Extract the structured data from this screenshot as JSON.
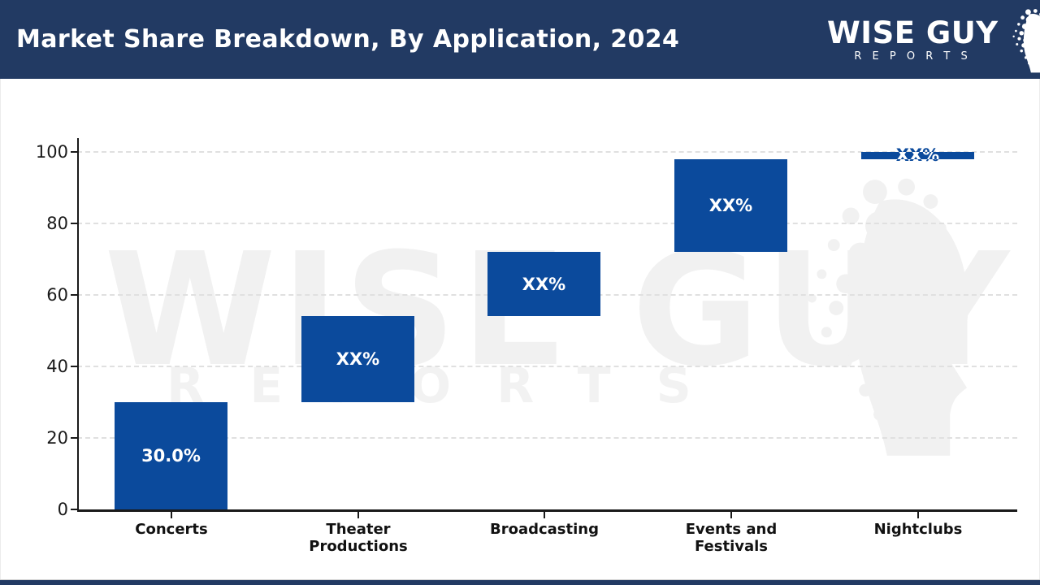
{
  "header": {
    "title": "Market Share Breakdown, By Application, 2024",
    "logo": {
      "name": "WISE GUY",
      "tagline": "R E P O R T S"
    }
  },
  "watermark": {
    "line1": "WISE GUY",
    "line2": "REPORTS"
  },
  "colors": {
    "header_navy": "#223a63",
    "bar_blue": "#0b4a9c",
    "gridline": "#e0e0e0",
    "axis": "#1a1a1a",
    "bar_label": "#ffffff",
    "watermark_gray": "#f1f1f1"
  },
  "chart_data": {
    "type": "bar",
    "subtype": "waterfall",
    "title": "Market Share Breakdown, By Application, 2024",
    "categories": [
      "Concerts",
      "Theater Productions",
      "Broadcasting",
      "Events and Festivals",
      "Nightclubs"
    ],
    "category_label_lines": [
      [
        "Concerts"
      ],
      [
        "Theater",
        "Productions"
      ],
      [
        "Broadcasting"
      ],
      [
        "Events and",
        "Festivals"
      ],
      [
        "Nightclubs"
      ]
    ],
    "bars": [
      {
        "category": "Concerts",
        "start": 0,
        "end": 30,
        "value": 30,
        "label": "30.0%"
      },
      {
        "category": "Theater Productions",
        "start": 30,
        "end": 54,
        "value": 24,
        "label": "XX%"
      },
      {
        "category": "Broadcasting",
        "start": 54,
        "end": 72,
        "value": 18,
        "label": "XX%"
      },
      {
        "category": "Events and Festivals",
        "start": 72,
        "end": 98,
        "value": 26,
        "label": "XX%"
      },
      {
        "category": "Nightclubs",
        "start": 98,
        "end": 100,
        "value": 2,
        "label": "XX%"
      }
    ],
    "xlabel": "",
    "ylabel": "",
    "ylim": [
      0,
      100
    ],
    "yticks": [
      0,
      20,
      40,
      60,
      80,
      100
    ],
    "grid": "horizontal dashed",
    "legend": "none"
  }
}
